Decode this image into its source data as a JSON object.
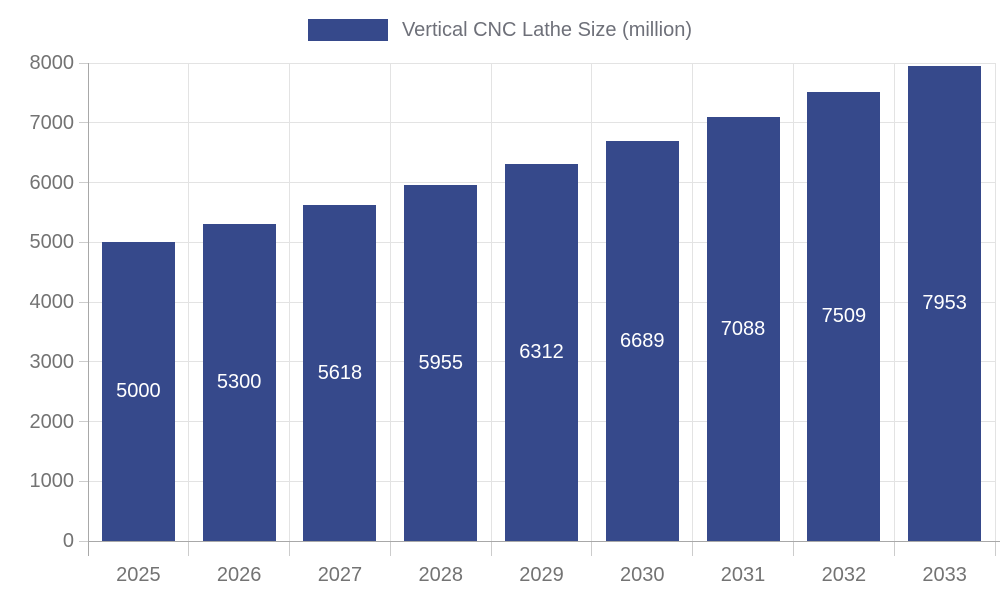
{
  "legend": {
    "items": [
      {
        "label": "Vertical CNC Lathe Size (million)",
        "color": "#36498b"
      }
    ]
  },
  "chart_data": {
    "type": "bar",
    "title": "Vertical CNC Lathe Size (million)",
    "series_name": "Vertical CNC Lathe Size (million)",
    "categories": [
      "2025",
      "2026",
      "2027",
      "2028",
      "2029",
      "2030",
      "2031",
      "2032",
      "2033"
    ],
    "values": [
      5000,
      5300,
      5618,
      5955,
      6312,
      6689,
      7088,
      7509,
      7953
    ],
    "value_labels": [
      "5000",
      "5300",
      "5618",
      "5955",
      "6312",
      "6689",
      "7088",
      "7509",
      "7953"
    ],
    "xlabel": "",
    "ylabel": "",
    "ylim": [
      0,
      8000
    ],
    "ytick_step": 1000,
    "yticks": [
      0,
      1000,
      2000,
      3000,
      4000,
      5000,
      6000,
      7000,
      8000
    ],
    "ytick_labels": [
      "0",
      "1000",
      "2000",
      "3000",
      "4000",
      "5000",
      "6000",
      "7000",
      "8000"
    ],
    "grid": true,
    "legend_position": "top-center",
    "colors": {
      "bar": "#36498b",
      "value_label": "#ffffff",
      "axis_text": "#737373",
      "legend_text": "#6e7079",
      "grid_line": "#e3e3e3",
      "tick_line": "#cccccc",
      "axis_line": "#a8a8a8"
    }
  }
}
